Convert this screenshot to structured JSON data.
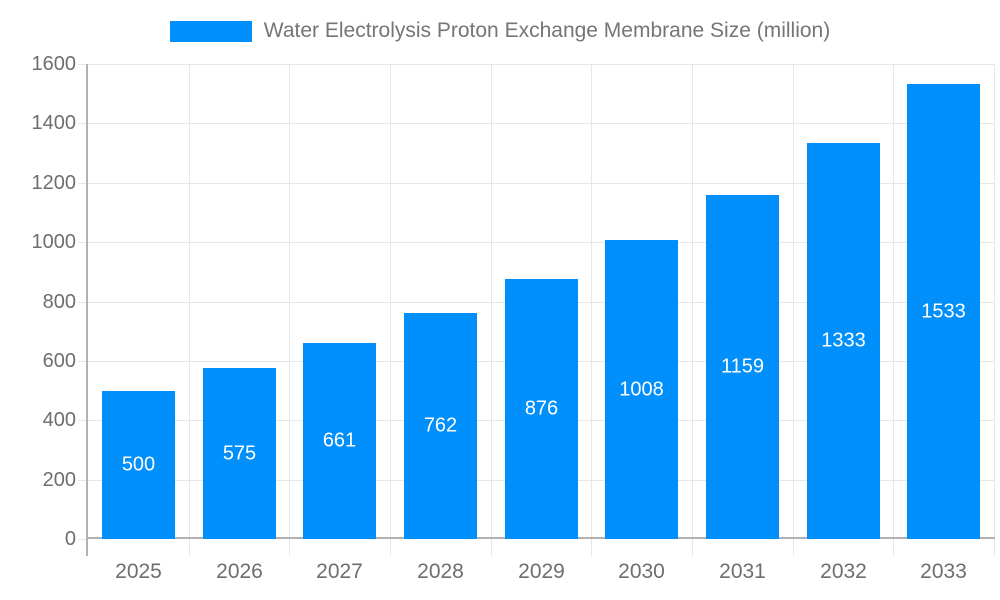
{
  "chart_data": {
    "type": "bar",
    "title": "Water Electrolysis Proton Exchange Membrane Size (million)",
    "categories": [
      "2025",
      "2026",
      "2027",
      "2028",
      "2029",
      "2030",
      "2031",
      "2032",
      "2033"
    ],
    "values": [
      500,
      575,
      661,
      762,
      876,
      1008,
      1159,
      1333,
      1533
    ],
    "xlabel": "",
    "ylabel": "",
    "ylim": [
      0,
      1600
    ],
    "ytick_step": 200,
    "ytick_labels": [
      "0",
      "200",
      "400",
      "600",
      "800",
      "1000",
      "1200",
      "1400",
      "1600"
    ],
    "grid": true,
    "legend_position": "top",
    "bar_value_labels_position": "inside-center"
  },
  "colors": {
    "bar": "#008FFB",
    "bar_label": "#FFFFFF",
    "axis_label": "#6E6E6E",
    "legend_text": "#757575",
    "grid_line": "#E7E7E7",
    "axis_line": "#B1B1B1"
  }
}
